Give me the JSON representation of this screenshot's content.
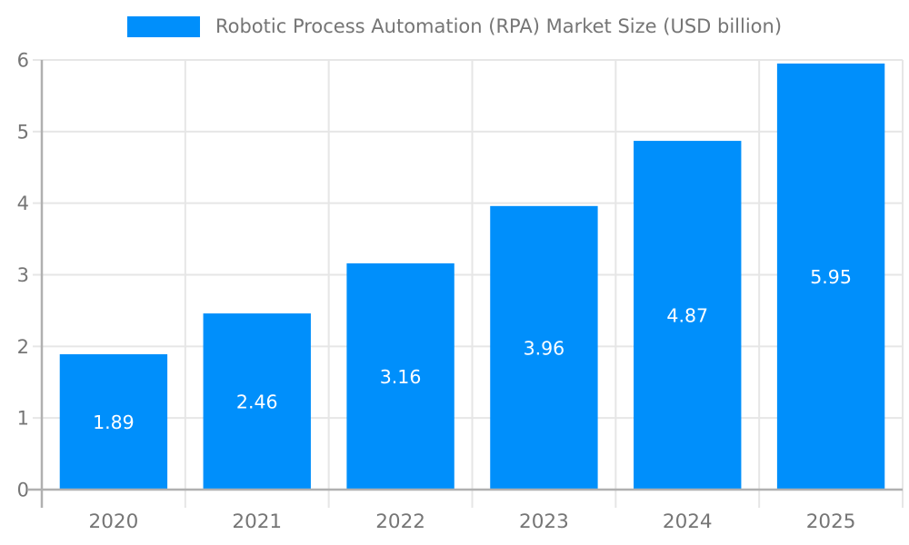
{
  "chart_data": {
    "type": "bar",
    "title": "",
    "legend": {
      "position": "top",
      "label": "Robotic Process Automation (RPA) Market Size (USD billion)"
    },
    "categories": [
      "2020",
      "2021",
      "2022",
      "2023",
      "2024",
      "2025"
    ],
    "values": [
      1.89,
      2.46,
      3.16,
      3.96,
      4.87,
      5.95
    ],
    "value_labels": [
      "1.89",
      "2.46",
      "3.16",
      "3.96",
      "4.87",
      "5.95"
    ],
    "xlabel": "",
    "ylabel": "",
    "ylim": [
      0,
      6
    ],
    "yticks": [
      0,
      1,
      2,
      3,
      4,
      5,
      6
    ],
    "grid": true,
    "colors": {
      "bar": "#008ffb",
      "value_label": "#ffffff",
      "grid_line": "#e6e6e6",
      "axis_line": "#b0b0b0",
      "tick_label": "#757575",
      "background": "#ffffff"
    }
  }
}
